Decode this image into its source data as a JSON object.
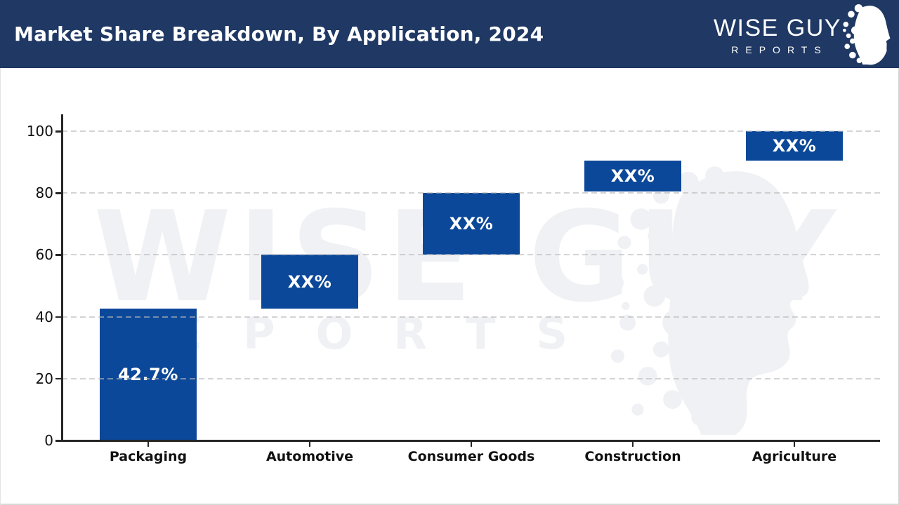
{
  "header": {
    "title": "Market Share Breakdown, By Application, 2024",
    "logo": {
      "brand_line1": "WISE GUY",
      "brand_line2": "REPORTS"
    }
  },
  "watermark": {
    "line1": "WISE GUY",
    "line2": "REPORTS"
  },
  "chart_data": {
    "type": "bar",
    "subtype": "waterfall",
    "title": "Market Share Breakdown, By Application, 2024",
    "unit": "%",
    "categories": [
      "Packaging",
      "Automotive",
      "Consumer Goods",
      "Construction",
      "Agriculture"
    ],
    "segments": [
      {
        "category": "Packaging",
        "start": 0,
        "end": 42.7,
        "label": "42.7%"
      },
      {
        "category": "Automotive",
        "start": 42.7,
        "end": 60,
        "label": "XX%"
      },
      {
        "category": "Consumer Goods",
        "start": 60,
        "end": 80,
        "label": "XX%"
      },
      {
        "category": "Construction",
        "start": 80.6,
        "end": 90.4,
        "label": "XX%"
      },
      {
        "category": "Agriculture",
        "start": 90.4,
        "end": 100,
        "label": "XX%"
      }
    ],
    "yticks": [
      0,
      20,
      40,
      60,
      80,
      100
    ],
    "ylim": [
      0,
      105
    ],
    "xlabel": "",
    "ylabel": "",
    "legend": null,
    "grid": "horizontal-dashed"
  },
  "colors": {
    "header_bg": "#1f3864",
    "bar": "#0c4899",
    "grid": "#b9b9b9",
    "axis": "#262626",
    "watermark": "#f0f1f4",
    "bar_label_text": "#ffffff",
    "tick_text": "#111111"
  }
}
